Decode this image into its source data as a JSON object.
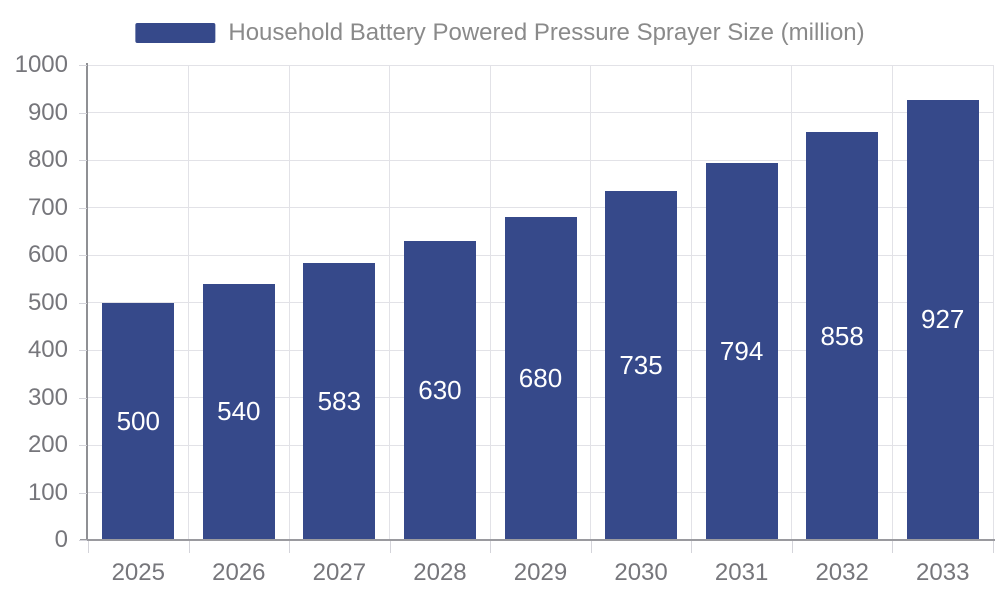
{
  "colors": {
    "bar": "#36498a",
    "value_label": "#ffffff",
    "legend_text": "#8a8a8a",
    "axis_label": "#76767b",
    "axis_line": "#94949a",
    "grid_line": "#e2e2e7",
    "tick": "#d4d4da",
    "background": "#ffffff"
  },
  "chart_data": {
    "type": "bar",
    "title": "Household Battery Powered Pressure Sprayer Size (million)",
    "legend": [
      "Household Battery Powered Pressure Sprayer Size (million)"
    ],
    "legend_position": "top-center",
    "categories": [
      "2025",
      "2026",
      "2027",
      "2028",
      "2029",
      "2030",
      "2031",
      "2032",
      "2033"
    ],
    "series": [
      {
        "name": "Household Battery Powered Pressure Sprayer Size (million)",
        "values": [
          500,
          540,
          583,
          630,
          680,
          735,
          794,
          858,
          927
        ]
      }
    ],
    "value_labels": {
      "position": "inside-center",
      "color": "#ffffff"
    },
    "xlabel": "",
    "ylabel": "",
    "ylim": [
      0,
      1000
    ],
    "yticks": [
      0,
      100,
      200,
      300,
      400,
      500,
      600,
      700,
      800,
      900,
      1000
    ],
    "grid": true
  }
}
